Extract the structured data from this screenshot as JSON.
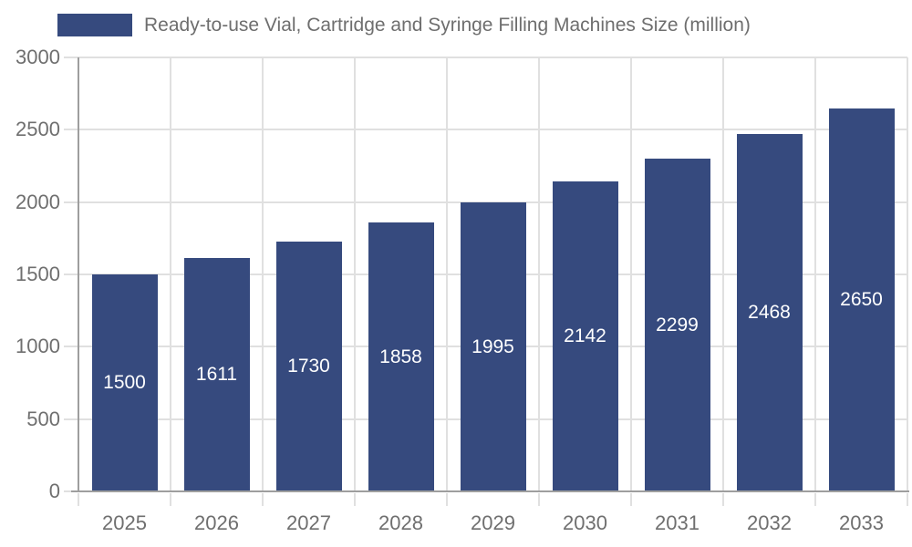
{
  "chart_data": {
    "type": "bar",
    "title": "Ready-to-use Vial, Cartridge and Syringe Filling Machines Size (million)",
    "categories": [
      "2025",
      "2026",
      "2027",
      "2028",
      "2029",
      "2030",
      "2031",
      "2032",
      "2033"
    ],
    "values": [
      1500,
      1611,
      1730,
      1858,
      1995,
      2142,
      2299,
      2468,
      2650
    ],
    "xlabel": "",
    "ylabel": "",
    "ylim": [
      0,
      3000
    ],
    "yticks": [
      0,
      500,
      1000,
      1500,
      2000,
      2500,
      3000
    ],
    "grid": true,
    "legend_position": "top-left",
    "bar_labels_inside": true
  },
  "colors": {
    "bar": "#364A7E",
    "grid": "#E0E0E0",
    "axis": "#9E9E9E",
    "text": "#6F6F6F",
    "bar_label": "#FFFFFF",
    "background": "#FFFFFF"
  }
}
